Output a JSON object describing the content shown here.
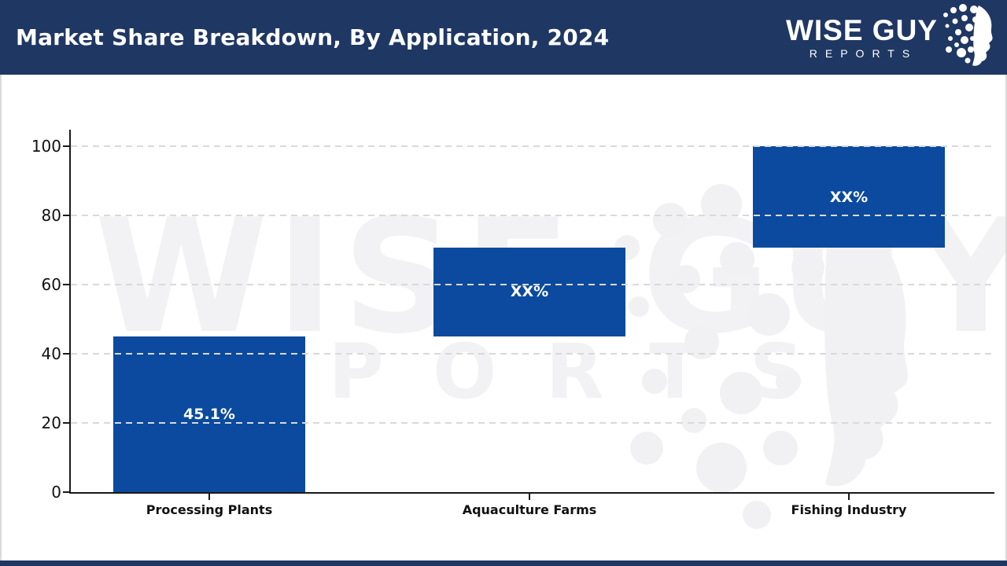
{
  "header": {
    "title": "Market Share Breakdown, By Application, 2024",
    "logo_line1": "WISE GUY",
    "logo_line2": "REPORTS"
  },
  "watermark": {
    "line1": "WISE GUY",
    "line2": "REPORTS"
  },
  "colors": {
    "header_bg": "#1f3763",
    "bar": "#0b4a9e",
    "grid": "#d9d9d9",
    "axis": "#191919",
    "bar_label": "#ffffff",
    "watermark": "#f2f2f4"
  },
  "chart_data": {
    "type": "bar",
    "subtype": "waterfall",
    "title": "Market Share Breakdown, By Application, 2024",
    "categories": [
      "Processing Plants",
      "Aquaculture Farms",
      "Fishing Industry"
    ],
    "segments": [
      {
        "category": "Processing Plants",
        "start": 0,
        "end": 45.1,
        "label": "45.1%"
      },
      {
        "category": "Aquaculture Farms",
        "start": 45.1,
        "end": 70.6,
        "label": "XX%"
      },
      {
        "category": "Fishing Industry",
        "start": 70.6,
        "end": 100,
        "label": "XX%"
      }
    ],
    "xlabel": "",
    "ylabel": "",
    "yticks": [
      0,
      20,
      40,
      60,
      80,
      100
    ],
    "ylim": [
      0,
      100
    ],
    "grid": "horizontal-dashed",
    "legend": "none"
  }
}
